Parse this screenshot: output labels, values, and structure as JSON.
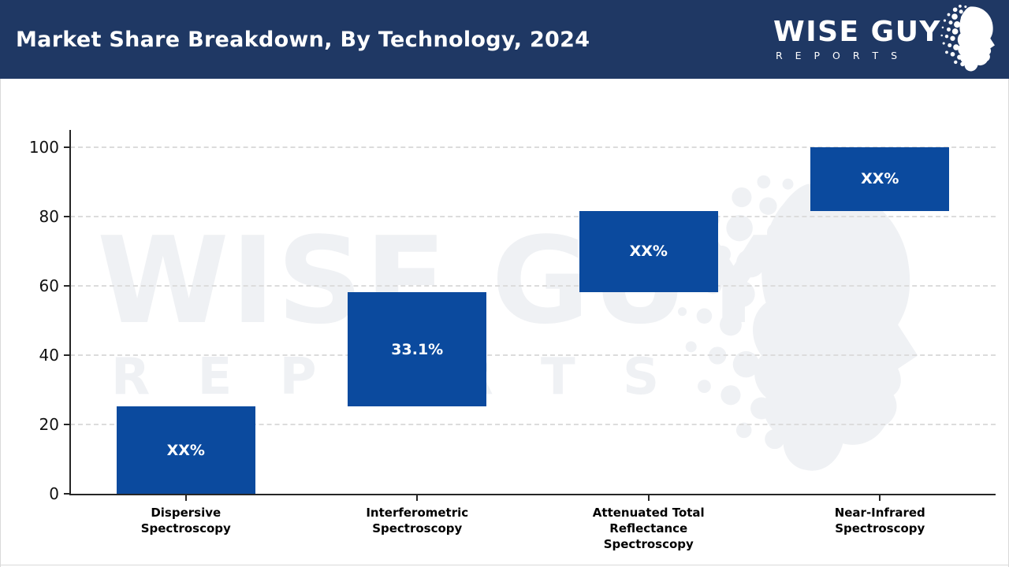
{
  "header": {
    "title": "Market Share Breakdown, By Technology, 2024",
    "logo": {
      "line1": "WISE GUY",
      "line2": "R E P O R T S"
    }
  },
  "watermark": {
    "line1": "WISE GUY",
    "line2": "R E P O R T S"
  },
  "chart_data": {
    "type": "bar",
    "subtype": "waterfall",
    "title": "Market Share Breakdown, By Technology, 2024",
    "categories": [
      "Dispersive\nSpectroscopy",
      "Interferometric\nSpectroscopy",
      "Attenuated Total\nReflectance\nSpectroscopy",
      "Near-Infrared\nSpectroscopy"
    ],
    "bars": [
      {
        "category": "Dispersive Spectroscopy",
        "start": 0,
        "end": 25.1,
        "label": "XX%"
      },
      {
        "category": "Interferometric Spectroscopy",
        "start": 25.1,
        "end": 58.2,
        "label": "33.1%",
        "value": 33.1
      },
      {
        "category": "Attenuated Total Reflectance Spectroscopy",
        "start": 58.2,
        "end": 81.6,
        "label": "XX%"
      },
      {
        "category": "Near-Infrared Spectroscopy",
        "start": 81.6,
        "end": 100,
        "label": "XX%"
      }
    ],
    "ylim": [
      0,
      100
    ],
    "yticks": [
      0,
      20,
      40,
      60,
      80,
      100
    ],
    "xlabel": "",
    "ylabel": "",
    "grid": "horizontal-dashed",
    "legend": "none",
    "bar_color": "#0b4a9e"
  },
  "colors": {
    "page_bg": "#ffffff",
    "header_bg": "#1f3864",
    "logo": "#ffffff",
    "bar": "#0b4a9e",
    "bar_label": "#ffffff",
    "axis": "#262626",
    "tick_text": "#111111",
    "gridline": "#dcdcdc",
    "watermark": "#eff1f4",
    "border": "#d9d9d9"
  }
}
